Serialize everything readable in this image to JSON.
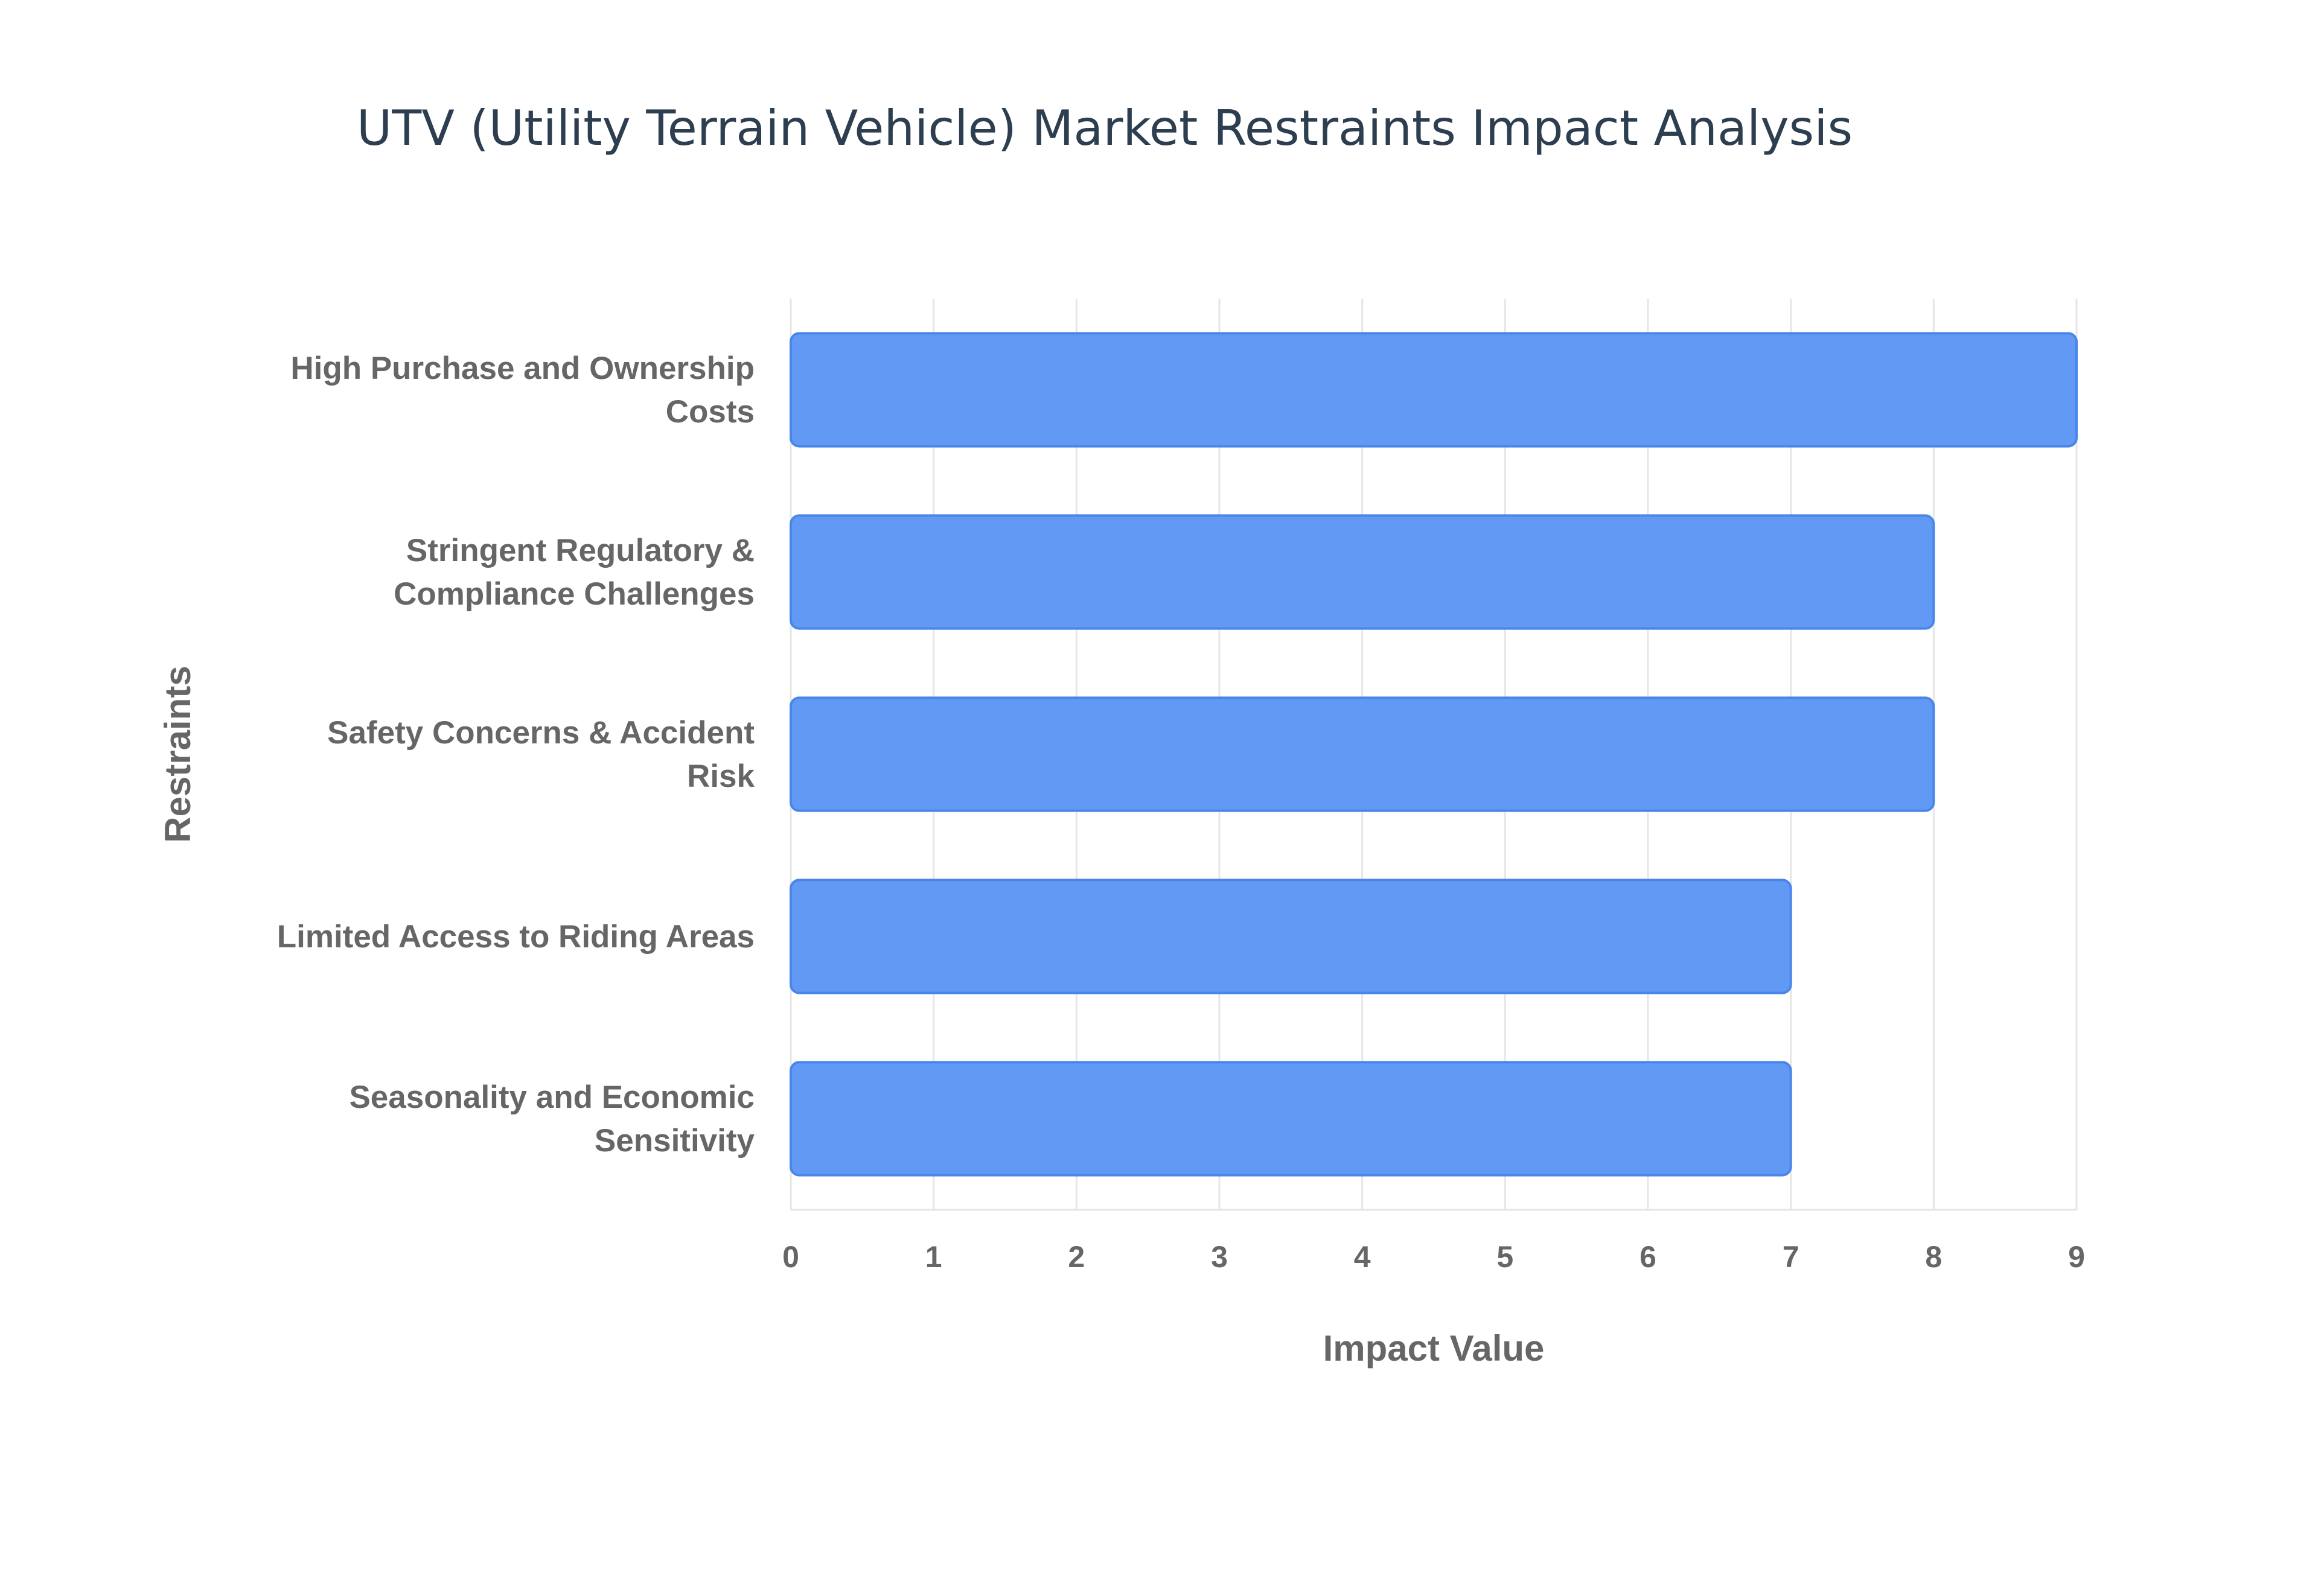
{
  "chart_data": {
    "type": "bar",
    "orientation": "horizontal",
    "title": "UTV (Utility Terrain Vehicle) Market Restraints Impact Analysis",
    "xlabel": "Impact Value",
    "ylabel": "Restraints",
    "xlim": [
      0,
      9
    ],
    "x_ticks": [
      0,
      1,
      2,
      3,
      4,
      5,
      6,
      7,
      8,
      9
    ],
    "grid": true,
    "legend": "none",
    "categories": [
      [
        "High Purchase and Ownership",
        "Costs"
      ],
      [
        "Stringent Regulatory &",
        "Compliance Challenges"
      ],
      [
        "Safety Concerns & Accident",
        "Risk"
      ],
      [
        "Limited Access to Riding Areas"
      ],
      [
        "Seasonality and Economic",
        "Sensitivity"
      ]
    ],
    "values": [
      9,
      8,
      8,
      7,
      7
    ],
    "bar_color": "#6199f5",
    "bar_border_color": "#4a86ea"
  }
}
